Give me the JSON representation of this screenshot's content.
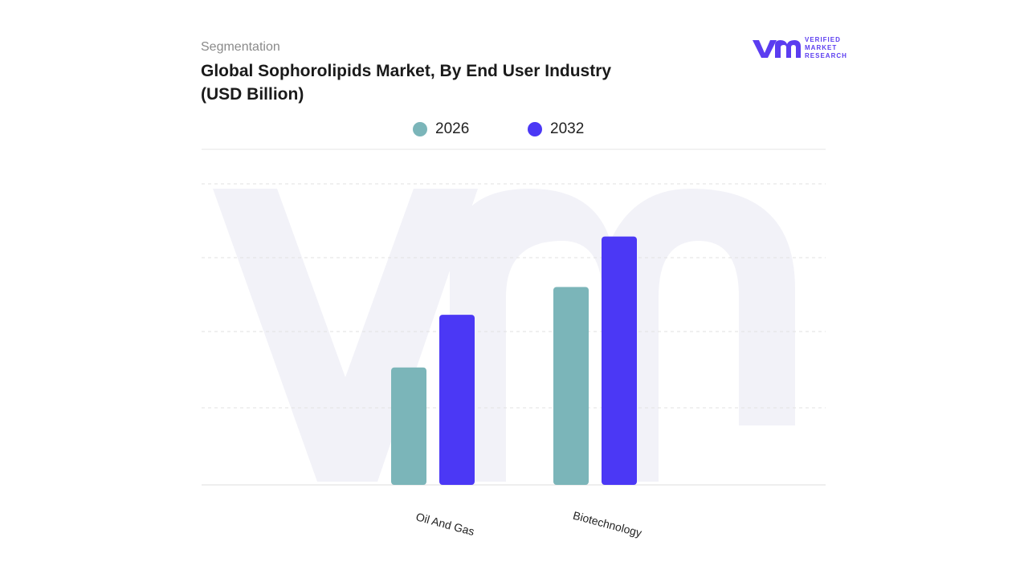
{
  "brand": [
    "VERIFIED",
    "MARKET",
    "RESEARCH"
  ],
  "chart_data": {
    "type": "bar",
    "subtitle": "Segmentation",
    "title": "Global Sophorolipids Market, By End User Industry (USD Billion)",
    "categories": [
      "Oil And Gas",
      "Biotechnology"
    ],
    "series": [
      {
        "name": "2026",
        "color": "#7bb5b9",
        "values": [
          1.56,
          2.63
        ]
      },
      {
        "name": "2032",
        "color": "#4b38f5",
        "values": [
          2.26,
          3.3
        ]
      }
    ],
    "ylim": [
      0,
      4
    ]
  }
}
